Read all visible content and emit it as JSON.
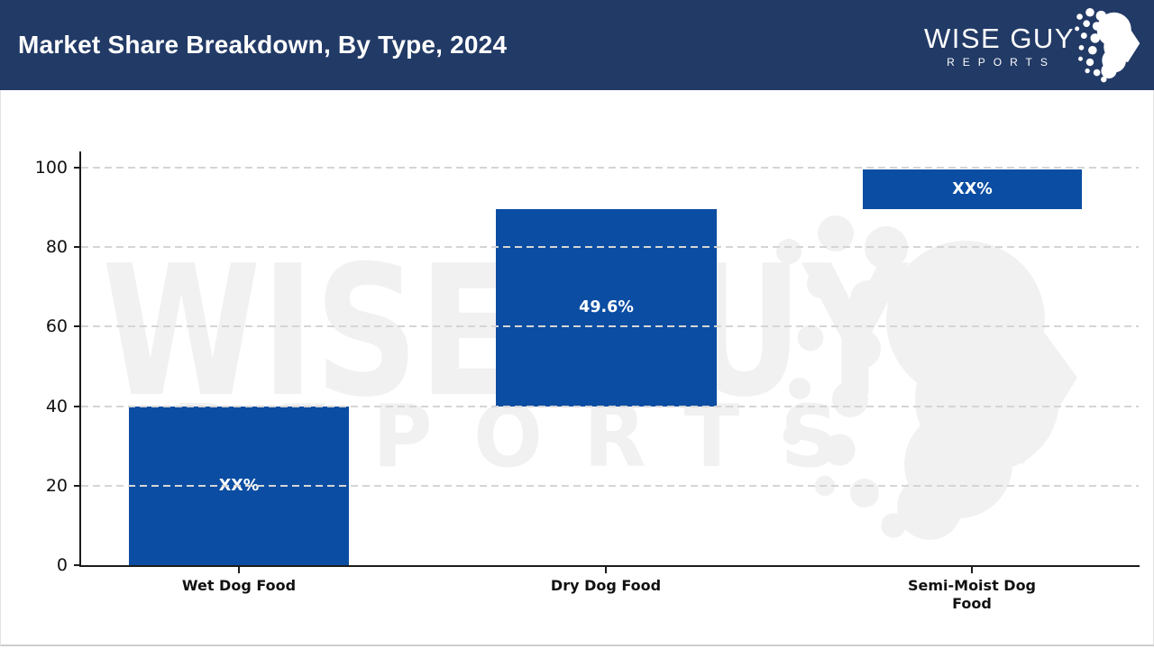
{
  "header": {
    "title": "Market Share Breakdown, By Type, 2024",
    "logo": {
      "brand": "WISE GUY",
      "sub": "REPORTS"
    }
  },
  "watermark": {
    "line1": "WISE GUY",
    "line2": "REPORTS"
  },
  "chart_data": {
    "type": "bar",
    "subtype": "waterfall",
    "title": "Market Share Breakdown, By Type, 2024",
    "categories": [
      "Wet Dog Food",
      "Dry Dog Food",
      "Semi-Moist Dog Food"
    ],
    "bars": [
      {
        "category": "Wet Dog Food",
        "label": "XX%",
        "value": 40,
        "start": 0,
        "end": 40
      },
      {
        "category": "Dry Dog Food",
        "label": "49.6%",
        "value": 49.6,
        "start": 40,
        "end": 89.6
      },
      {
        "category": "Semi-Moist Dog Food",
        "label": "XX%",
        "value": 10,
        "start": 89.6,
        "end": 99.6
      }
    ],
    "yticks": [
      0,
      20,
      40,
      60,
      80,
      100
    ],
    "ytick_labels": [
      "0",
      "20",
      "40",
      "60",
      "80",
      "100"
    ],
    "ylim": [
      0,
      100
    ],
    "bar_color": "#0b4da2",
    "grid": "dashed-horizontal",
    "legend": "none",
    "colors": {
      "header_navy": "#223a66",
      "axis": "#1c1c1c",
      "gridline": "#d5d5d5",
      "watermark": "#f1f1f1"
    }
  }
}
